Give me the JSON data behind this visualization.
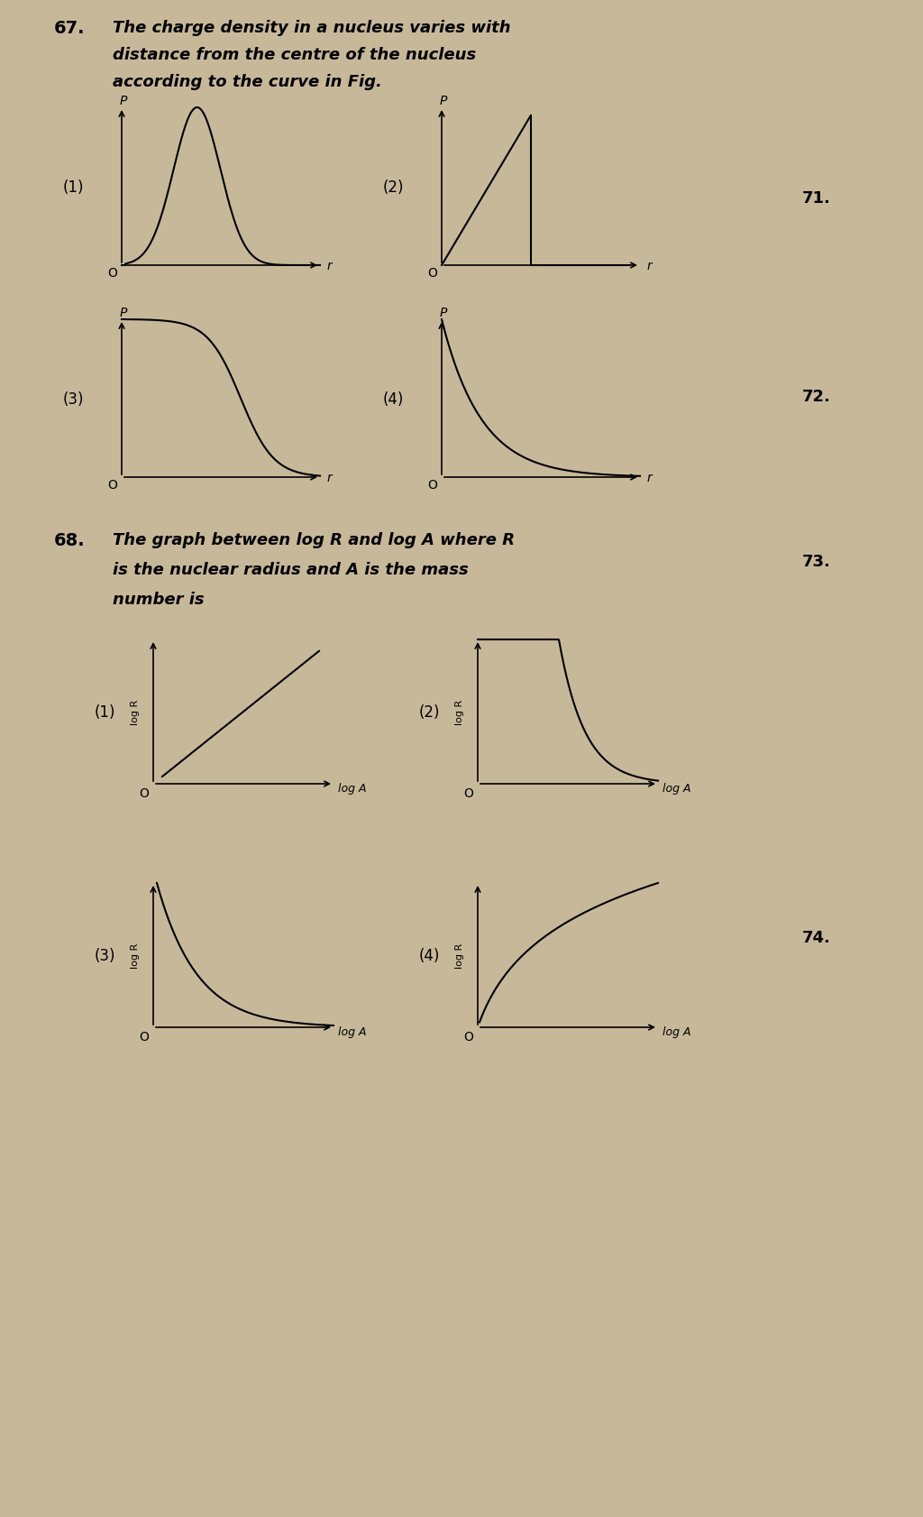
{
  "bg_color": "#c8b89a",
  "line_color": "#000000",
  "q67_num": "67.",
  "q67_line1": "The charge density in a nucleus varies with",
  "q67_line2": "distance from the centre of the nucleus",
  "q67_line3": "according to the curve in Fig.",
  "q68_num": "68.",
  "q68_line1": "The graph between log R and log A where R",
  "q68_line2": "is the nuclear radius and A is the mass",
  "q68_line3": "number is",
  "n71": "71.",
  "n72": "72.",
  "n73": "73.",
  "n74": "74.",
  "ylabel_67": "P",
  "xlabel_67": "r",
  "origin_67": "O",
  "ylabel_68": "log R",
  "xlabel_68": "log A",
  "origin_68": "O",
  "panel_labels": [
    "(1)",
    "(2)",
    "(3)",
    "(4)"
  ]
}
